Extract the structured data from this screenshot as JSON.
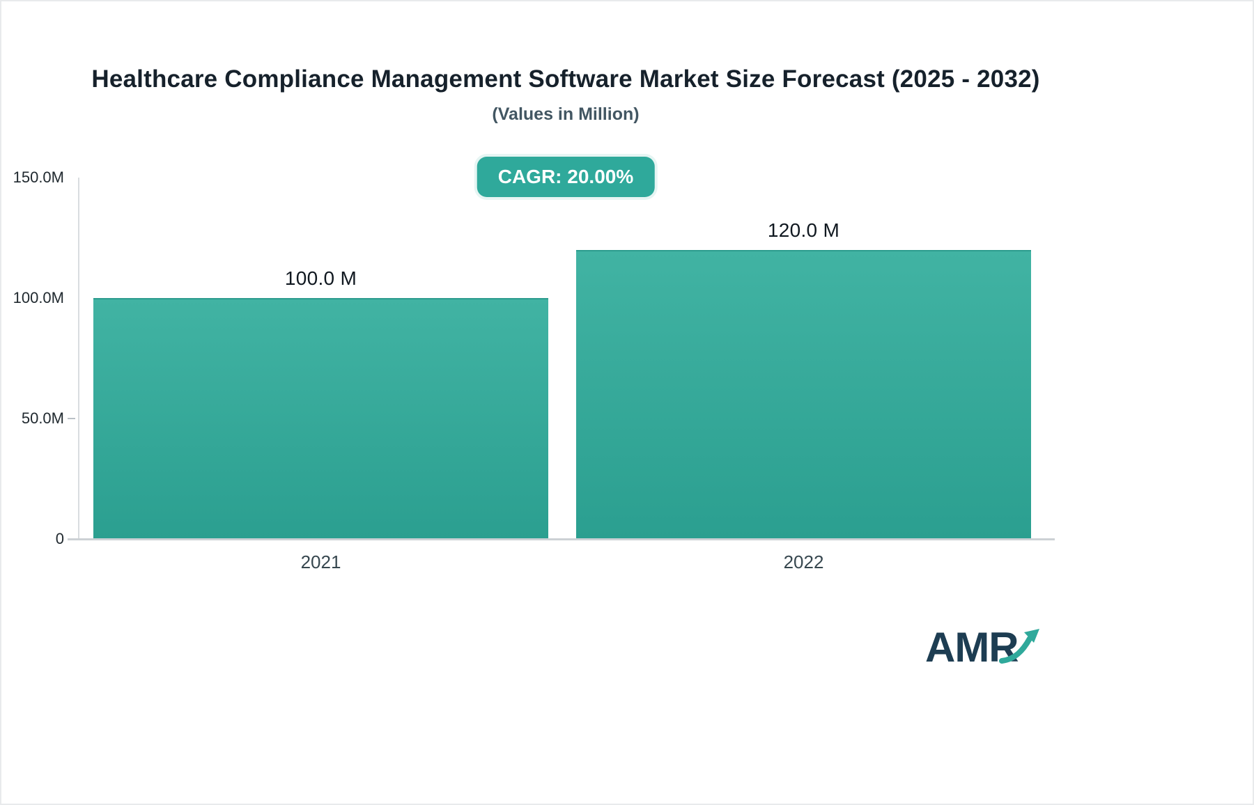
{
  "header": {
    "title": "Healthcare Compliance Management Software Market Size Forecast (2025 - 2032)",
    "subtitle": "(Values in Million)"
  },
  "badge": {
    "label": "CAGR: 20.00%"
  },
  "chart_data": {
    "type": "bar",
    "title": "Healthcare Compliance Management Software Market Size Forecast (2025 - 2032)",
    "subtitle": "(Values in Million)",
    "categories": [
      "2021",
      "2022"
    ],
    "values": [
      100.0,
      120.0
    ],
    "value_labels": [
      "100.0 M",
      "120.0 M"
    ],
    "ylim": [
      0,
      150
    ],
    "yticks": [
      150,
      100,
      50,
      0
    ],
    "ytick_labels": [
      "150.0M",
      "100.0M",
      "50.0M",
      "0"
    ],
    "cagr": "20.00%",
    "grid": "off",
    "legend": "none"
  },
  "colors": {
    "accent": "#2fa99b",
    "bar_top": "#41b3a3",
    "bar_bottom": "#2b9f90",
    "logo_text": "#1d3d52"
  },
  "logo": {
    "text": "AMR"
  }
}
